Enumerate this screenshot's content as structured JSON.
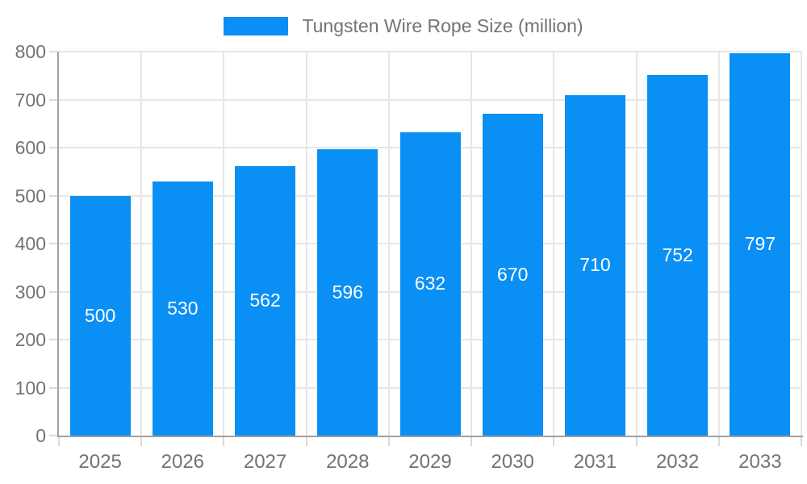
{
  "legend": {
    "label": "Tungsten Wire Rope Size (million)"
  },
  "chart_data": {
    "type": "bar",
    "title": "Tungsten Wire Rope Size (million)",
    "categories": [
      "2025",
      "2026",
      "2027",
      "2028",
      "2029",
      "2030",
      "2031",
      "2032",
      "2033"
    ],
    "values": [
      500,
      530,
      562,
      596,
      632,
      670,
      710,
      752,
      797
    ],
    "series_name": "Tungsten Wire Rope Size (million)",
    "xlabel": "",
    "ylabel": "",
    "ylim": [
      0,
      800
    ],
    "ytick_step": 100,
    "ytick_labels": [
      "0",
      "100",
      "200",
      "300",
      "400",
      "500",
      "600",
      "700",
      "800"
    ],
    "grid": true,
    "legend_position": "top",
    "value_labels": "inside-center",
    "style": {
      "bar_color": "#0a8ff5",
      "value_label_color": "#ffffff",
      "axis_text_color": "#737373",
      "gridline_color": "#e6e6e6",
      "tick_color": "#d9d9d9",
      "axis_line_color": "#a0a0a0",
      "background_color": "#ffffff"
    }
  }
}
